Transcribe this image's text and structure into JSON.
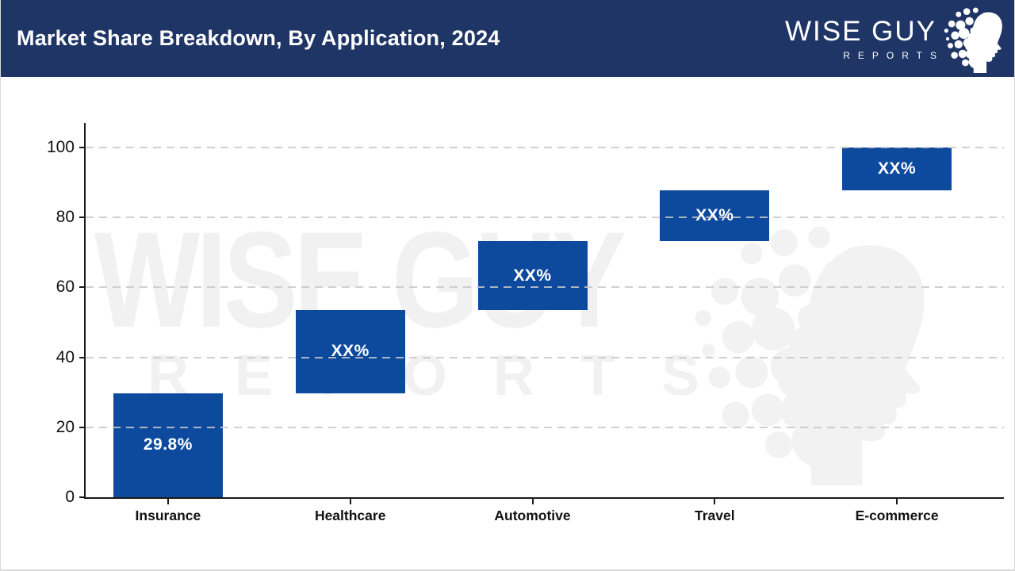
{
  "header": {
    "title": "Market Share Breakdown, By Application, 2024",
    "logo": {
      "line1": "WISE GUY",
      "line2": "REPORTS"
    }
  },
  "watermark": {
    "line1": "WISE GUY",
    "line2": "REPORTS"
  },
  "chart_data": {
    "type": "bar",
    "subtype": "waterfall",
    "title": "Market Share Breakdown, By Application, 2024",
    "xlabel": "",
    "ylabel": "",
    "categories": [
      "Insurance",
      "Healthcare",
      "Automotive",
      "Travel",
      "E-commerce"
    ],
    "segments": [
      {
        "category": "Insurance",
        "start": 0,
        "end": 29.8,
        "value": 29.8,
        "label": "29.8%"
      },
      {
        "category": "Healthcare",
        "start": 29.8,
        "end": 53.5,
        "value": 23.7,
        "label": "XX%"
      },
      {
        "category": "Automotive",
        "start": 53.5,
        "end": 73.2,
        "value": 19.7,
        "label": "XX%"
      },
      {
        "category": "Travel",
        "start": 73.2,
        "end": 87.8,
        "value": 14.6,
        "label": "XX%"
      },
      {
        "category": "E-commerce",
        "start": 87.8,
        "end": 100,
        "value": 12.2,
        "label": "XX%"
      }
    ],
    "yticks": [
      0,
      20,
      40,
      60,
      80,
      100
    ],
    "ylim": [
      0,
      107
    ],
    "grid": "horizontal-dashed",
    "legend": "none",
    "colors": {
      "bar": "#0d4a9e",
      "bar_label": "#ffffff",
      "header_bg": "#1f3566",
      "axis": "#1a1a1a",
      "gridline": "#cccccc",
      "watermark": "#f1f1f1"
    }
  }
}
